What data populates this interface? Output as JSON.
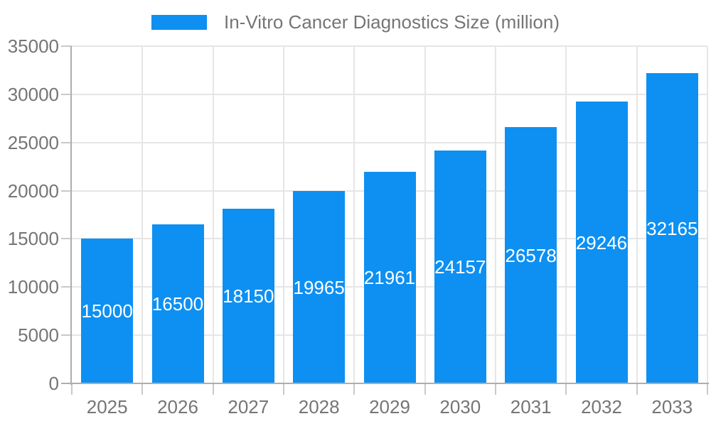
{
  "chart_data": {
    "type": "bar",
    "title": "",
    "legend": "In-Vitro Cancer Diagnostics Size (million)",
    "categories": [
      "2025",
      "2026",
      "2027",
      "2028",
      "2029",
      "2030",
      "2031",
      "2032",
      "2033"
    ],
    "values": [
      15000,
      16500,
      18150,
      19965,
      21961,
      24157,
      26578,
      29246,
      32165
    ],
    "xlabel": "",
    "ylabel": "",
    "ylim": [
      0,
      35000
    ],
    "yticks": [
      0,
      5000,
      10000,
      15000,
      20000,
      25000,
      30000,
      35000
    ],
    "grid": true,
    "legend_position": "top",
    "bar_labels_inside": true,
    "colors": {
      "bar": "#0d90f2",
      "bar_label": "#ffffff",
      "axis_text": "#757575",
      "axis_line": "#aeaeae",
      "gridline": "#e6e6e6",
      "tick": "#c9c9c9",
      "background": "#ffffff"
    }
  }
}
